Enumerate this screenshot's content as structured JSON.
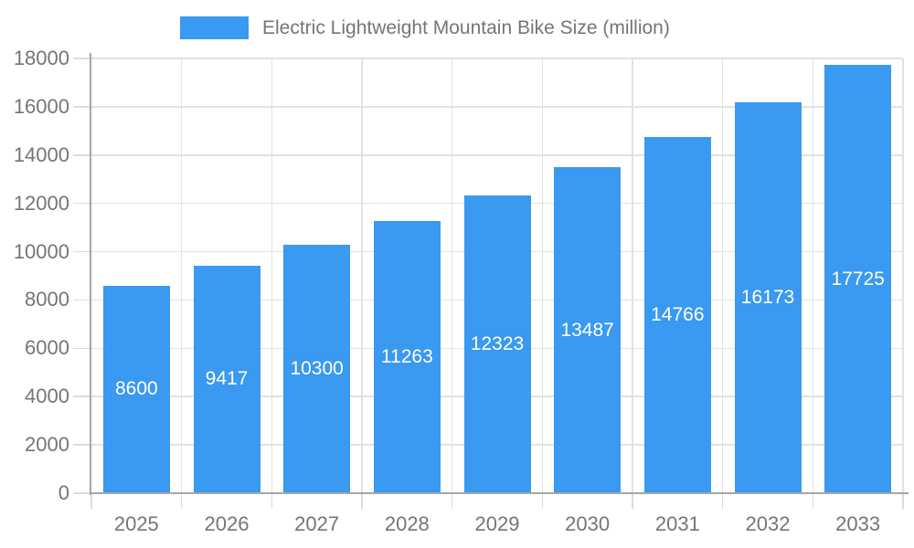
{
  "chart_data": {
    "type": "bar",
    "title": "Electric Lightweight Mountain Bike Size (million)",
    "legend": [
      "Electric Lightweight Mountain Bike Size (million)"
    ],
    "legend_position": "top",
    "categories": [
      "2025",
      "2026",
      "2027",
      "2028",
      "2029",
      "2030",
      "2031",
      "2032",
      "2033"
    ],
    "values": [
      8600,
      9417,
      10300,
      11263,
      12323,
      13487,
      14766,
      16173,
      17725
    ],
    "xlabel": "",
    "ylabel": "",
    "ylim": [
      0,
      18000
    ],
    "ytick_step": 2000,
    "grid": true,
    "value_labels": "inside-center",
    "colors": {
      "bar": "#3a99f0",
      "axis_line": "#a6a6a6",
      "gridline": "#e2e2e2",
      "tick": "#dcdcdc",
      "label_text": "#757575",
      "value_label_text": "#ffffff",
      "background": "#ffffff"
    }
  }
}
